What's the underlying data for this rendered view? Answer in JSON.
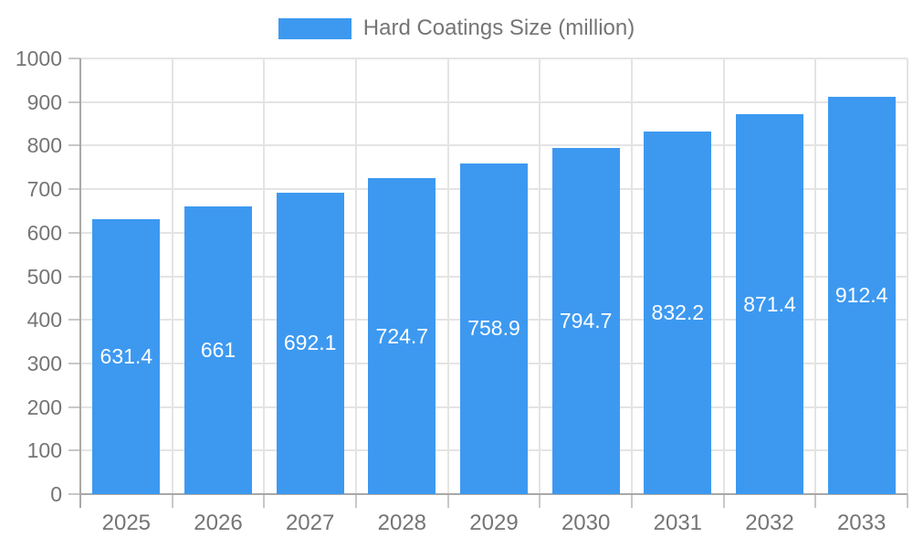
{
  "page": {
    "background": "#ffffff"
  },
  "chart_data": {
    "type": "bar",
    "title": "Hard Coatings Size (million)",
    "categories": [
      "2025",
      "2026",
      "2027",
      "2028",
      "2029",
      "2030",
      "2031",
      "2032",
      "2033"
    ],
    "values": [
      631.4,
      661,
      692.1,
      724.7,
      758.9,
      794.7,
      832.2,
      871.4,
      912.4
    ],
    "value_labels": [
      "631.4",
      "661",
      "692.1",
      "724.7",
      "758.9",
      "794.7",
      "832.2",
      "871.4",
      "912.4"
    ],
    "xlabel": "",
    "ylabel": "",
    "ylim": [
      0,
      1000
    ],
    "y_ticks": [
      0,
      100,
      200,
      300,
      400,
      500,
      600,
      700,
      800,
      900,
      1000
    ],
    "grid": true,
    "legend_position": "top-center",
    "value_label_position": "inside-center",
    "colors": {
      "bar": "#3D99F0",
      "value_label": "#ffffff",
      "axis_line": "#a8a8a8",
      "gridline": "#e4e4e4",
      "tick": "#c8c8c8",
      "text": "#757575",
      "background": "#ffffff"
    }
  }
}
